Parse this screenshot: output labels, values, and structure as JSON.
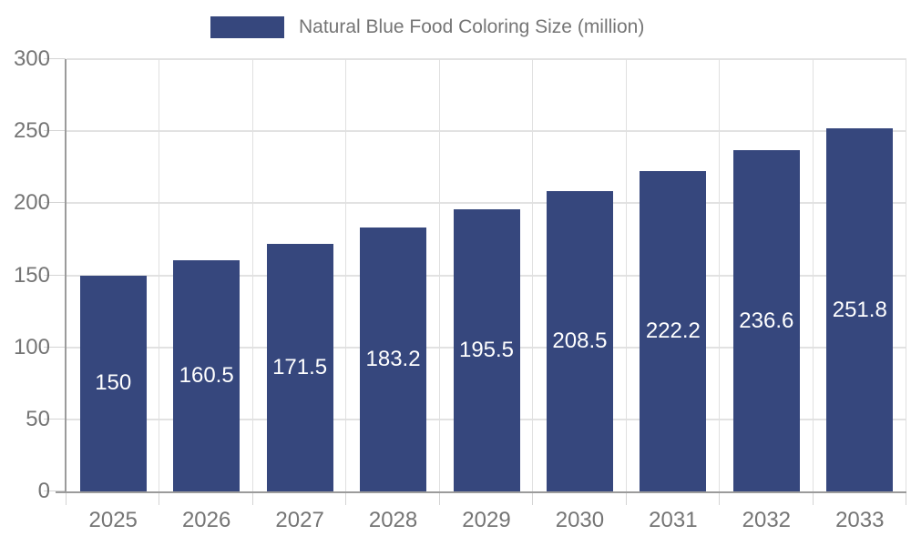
{
  "legend": {
    "label": "Natural Blue Food Coloring Size (million)"
  },
  "chart_data": {
    "type": "bar",
    "title": "Natural Blue Food Coloring Size (million)",
    "categories": [
      "2025",
      "2026",
      "2027",
      "2028",
      "2029",
      "2030",
      "2031",
      "2032",
      "2033"
    ],
    "values": [
      150,
      160.5,
      171.5,
      183.2,
      195.5,
      208.5,
      222.2,
      236.6,
      251.8
    ],
    "value_labels": [
      "150",
      "160.5",
      "171.5",
      "183.2",
      "195.5",
      "208.5",
      "222.2",
      "236.6",
      "251.8"
    ],
    "xlabel": "",
    "ylabel": "",
    "ylim": [
      0,
      300
    ],
    "yticks": [
      0,
      50,
      100,
      150,
      200,
      250,
      300
    ],
    "grid": "on",
    "legend_position": "top-center",
    "colors": {
      "bar": "#36477D",
      "axis_text": "#757575",
      "grid_line_h": "#e2e2e2",
      "grid_line_v": "#e0e0e0",
      "tick_line": "#d4d4d4",
      "axis_line": "#9b9b9b",
      "value_label": "#ffffff",
      "background": "#ffffff"
    }
  }
}
